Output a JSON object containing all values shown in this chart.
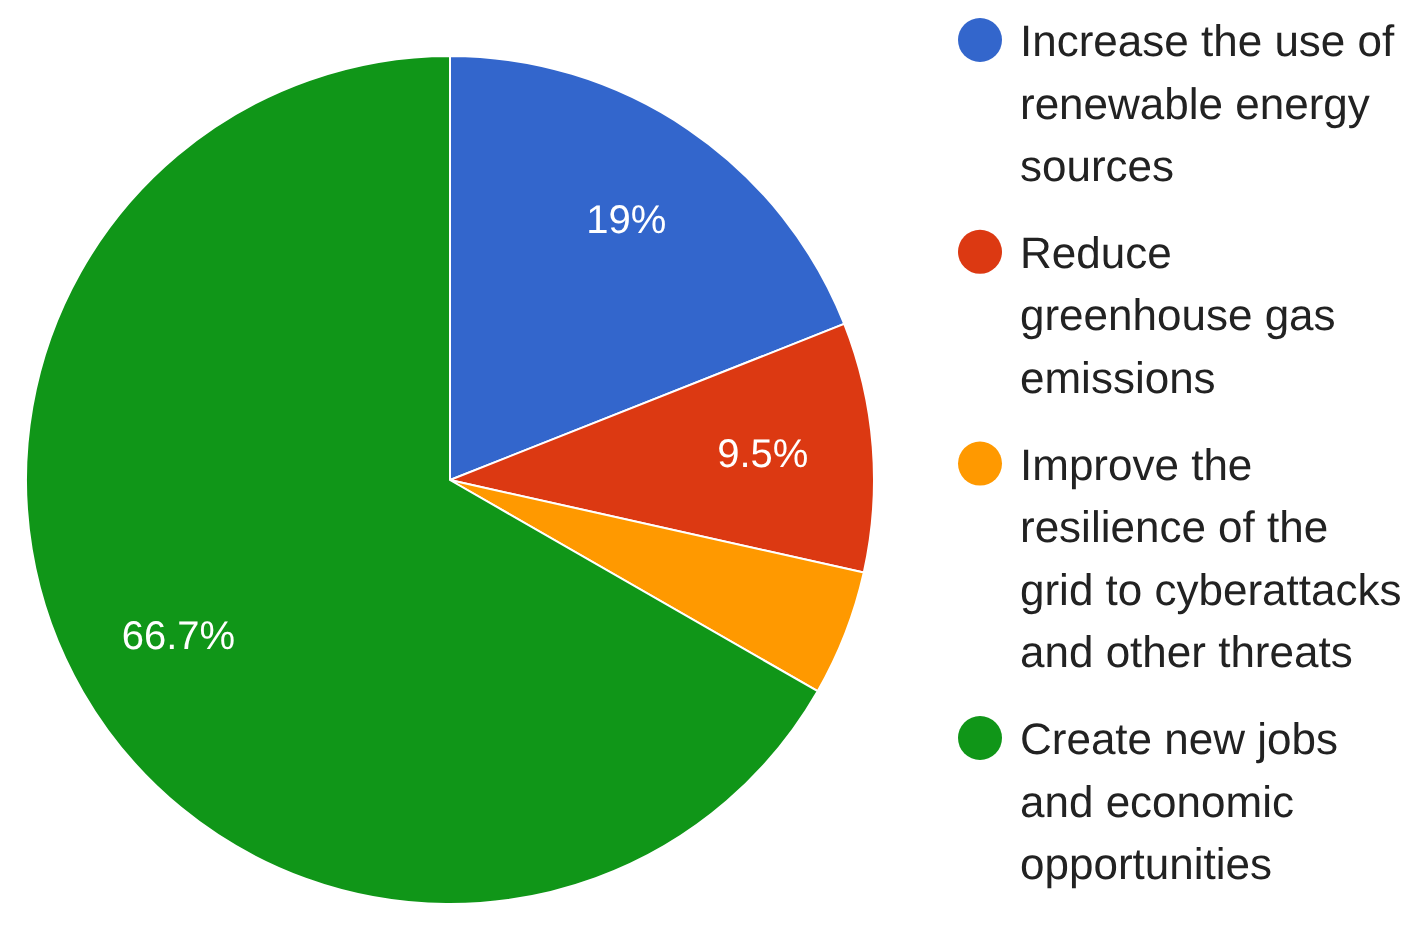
{
  "chart_data": {
    "type": "pie",
    "categories": [
      "Increase the use of renewable energy sources",
      "Reduce greenhouse gas emissions",
      "Improve the resilience of the grid to cyberattacks and other threats",
      "Create new jobs and economic opportunities"
    ],
    "values": [
      19,
      9.5,
      4.8,
      66.7
    ],
    "value_labels": [
      "19%",
      "9.5%",
      null,
      "66.7%"
    ],
    "colors": [
      "#3366cc",
      "#dc3912",
      "#ff9900",
      "#109618"
    ],
    "legend": "right"
  }
}
